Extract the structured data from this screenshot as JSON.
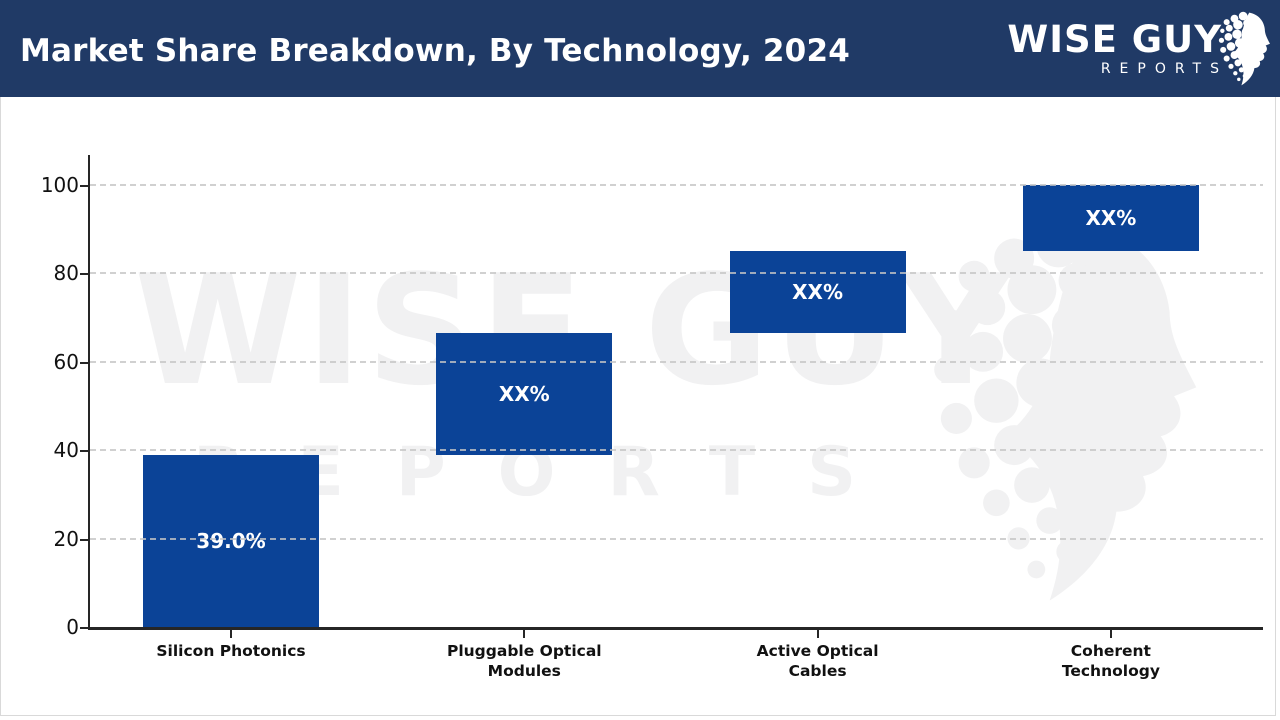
{
  "header": {
    "title": "Market Share Breakdown, By Technology, 2024",
    "brand": {
      "line1": "WISE GUY",
      "line2": "REPORTS"
    }
  },
  "watermark": {
    "line1": "WISE GUY",
    "line2": "REPORTS"
  },
  "chart_data": {
    "type": "bar",
    "subtype": "floating-waterfall",
    "title": "Market Share Breakdown, By Technology, 2024",
    "categories": [
      "Silicon Photonics",
      "Pluggable Optical\nModules",
      "Active Optical\nCables",
      "Coherent\nTechnology"
    ],
    "bars": [
      {
        "category": "Silicon Photonics",
        "start": 0,
        "end": 39,
        "label": "39.0%"
      },
      {
        "category": "Pluggable Optical Modules",
        "start": 39,
        "end": 66.5,
        "label": "XX%"
      },
      {
        "category": "Active Optical Cables",
        "start": 66.5,
        "end": 85,
        "label": "XX%"
      },
      {
        "category": "Coherent Technology",
        "start": 85,
        "end": 100,
        "label": "XX%"
      }
    ],
    "ylim": [
      0,
      107
    ],
    "yticks": [
      0,
      20,
      40,
      60,
      80,
      100
    ],
    "grid": "horizontal-dashed",
    "legend": "none",
    "bar_color": "#0b4397",
    "bar_label_color": "#ffffff"
  },
  "colors": {
    "header_bg": "#203a66",
    "bar": "#0b4397",
    "grid": "#c5c5c5",
    "axis": "#262626",
    "watermark": "#f1f1f2",
    "panel_border": "#d9d9d9"
  }
}
